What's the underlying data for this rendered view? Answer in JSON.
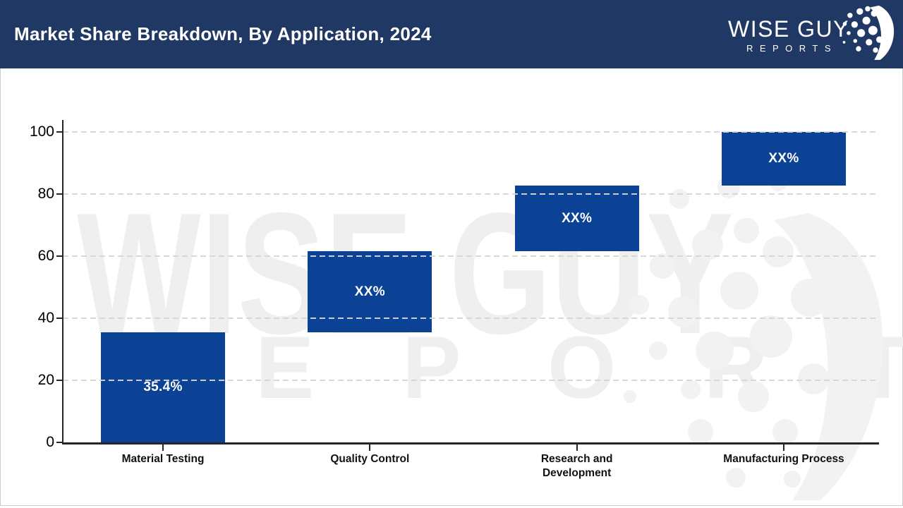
{
  "header": {
    "title": "Market Share Breakdown, By Application, 2024",
    "logo": {
      "wordmark": "WISE GUY",
      "subtext": "REPORTS"
    }
  },
  "watermark": {
    "line1": "WISE GUY",
    "line2": "R E P O R T S"
  },
  "chart_data": {
    "type": "bar",
    "subtype": "floating-waterfall",
    "title": "Market Share Breakdown, By Application, 2024",
    "categories": [
      "Material Testing",
      "Quality Control",
      "Research and Development",
      "Manufacturing Process"
    ],
    "segments": [
      {
        "category": "Material Testing",
        "start": 0,
        "end": 35.4,
        "label": "35.4%"
      },
      {
        "category": "Quality Control",
        "start": 35.4,
        "end": 61.6,
        "label": "XX%"
      },
      {
        "category": "Research and Development",
        "start": 61.6,
        "end": 82.7,
        "label": "XX%"
      },
      {
        "category": "Manufacturing Process",
        "start": 82.7,
        "end": 100,
        "label": "XX%"
      }
    ],
    "xlabel": "",
    "ylabel": "",
    "ylim": [
      0,
      100
    ],
    "yticks": [
      0,
      20,
      40,
      60,
      80,
      100
    ],
    "grid": "horizontal-dashed-above-bars",
    "legend": "none",
    "bar_color": "#0b4295"
  },
  "colors": {
    "header_bg": "#1f3864",
    "bar": "#0b4295",
    "axis": "#262626",
    "gridline": "#d6d6d6",
    "watermark": "#efefef",
    "border": "#cccccc"
  }
}
